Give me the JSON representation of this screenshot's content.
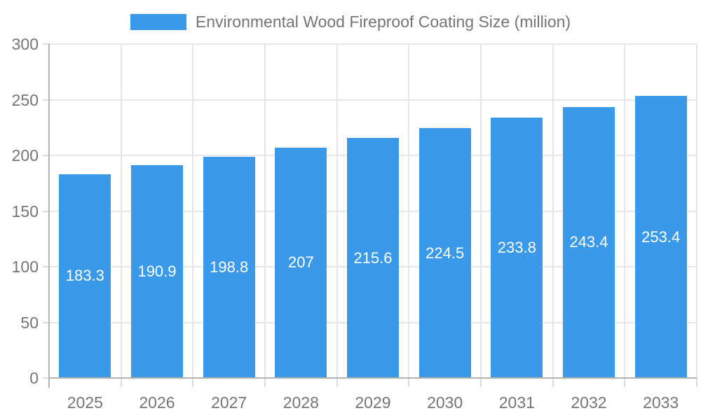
{
  "legend": {
    "series_label": "Environmental Wood Fireproof Coating Size (million)"
  },
  "chart_data": {
    "type": "bar",
    "title": "Environmental Wood Fireproof Coating Size (million)",
    "categories": [
      "2025",
      "2026",
      "2027",
      "2028",
      "2029",
      "2030",
      "2031",
      "2032",
      "2033"
    ],
    "values": [
      183.3,
      190.9,
      198.8,
      207,
      215.6,
      224.5,
      233.8,
      243.4,
      253.4
    ],
    "value_labels": [
      "183.3",
      "190.9",
      "198.8",
      "207",
      "215.6",
      "224.5",
      "233.8",
      "243.4",
      "253.4"
    ],
    "series": [
      {
        "name": "Environmental Wood Fireproof Coating Size (million)",
        "values": [
          183.3,
          190.9,
          198.8,
          207,
          215.6,
          224.5,
          233.8,
          243.4,
          253.4
        ]
      }
    ],
    "xlabel": "",
    "ylabel": "",
    "ylim": [
      0,
      300
    ],
    "yticks": [
      0,
      50,
      100,
      150,
      200,
      250,
      300
    ],
    "grid": true,
    "legend_position": "top",
    "bar_label_position": "middle"
  },
  "colors": {
    "bar": "#3b99ea",
    "value_label": "#ffffff",
    "axis_text": "#757575",
    "gridline": "#e6e6e6",
    "tick": "#dcdcdc",
    "axis_line": "#b3b3b3",
    "background": "#ffffff"
  }
}
